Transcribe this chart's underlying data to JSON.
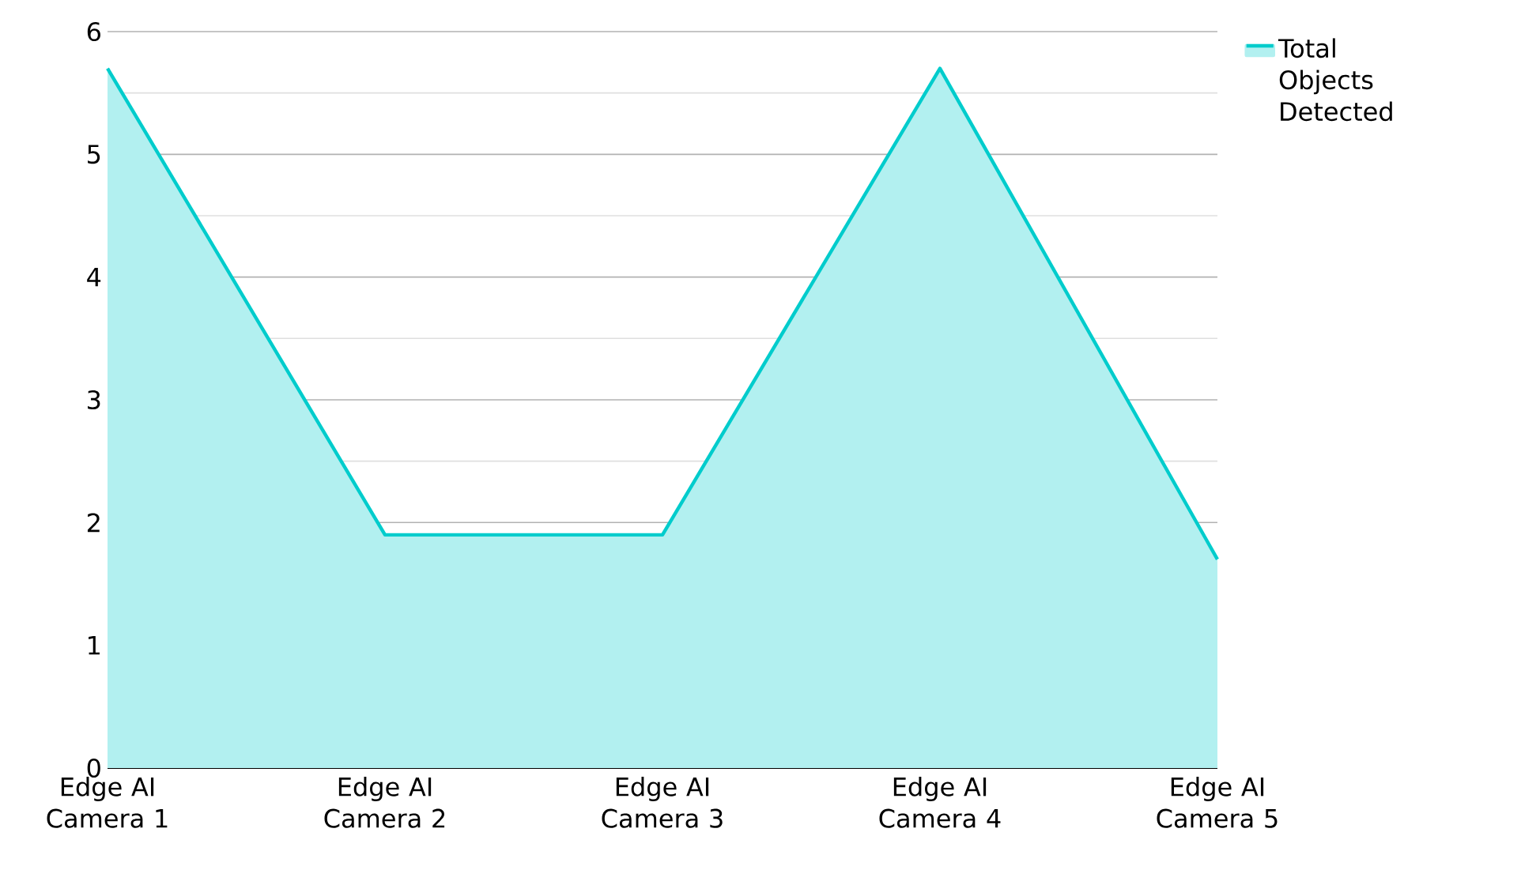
{
  "chart_data": {
    "type": "area",
    "categories": [
      "Edge AI Camera 1",
      "Edge AI Camera 2",
      "Edge AI Camera 3",
      "Edge AI Camera 4",
      "Edge AI Camera 5"
    ],
    "series": [
      {
        "name": "Total Objects Detected",
        "color": "#00cccc",
        "values": [
          5.7,
          1.9,
          1.9,
          5.7,
          1.7
        ]
      }
    ],
    "ylim": [
      0,
      6
    ],
    "yticks": [
      0,
      1,
      2,
      3,
      4,
      5,
      6
    ],
    "grid": "y",
    "legend": "top right"
  }
}
